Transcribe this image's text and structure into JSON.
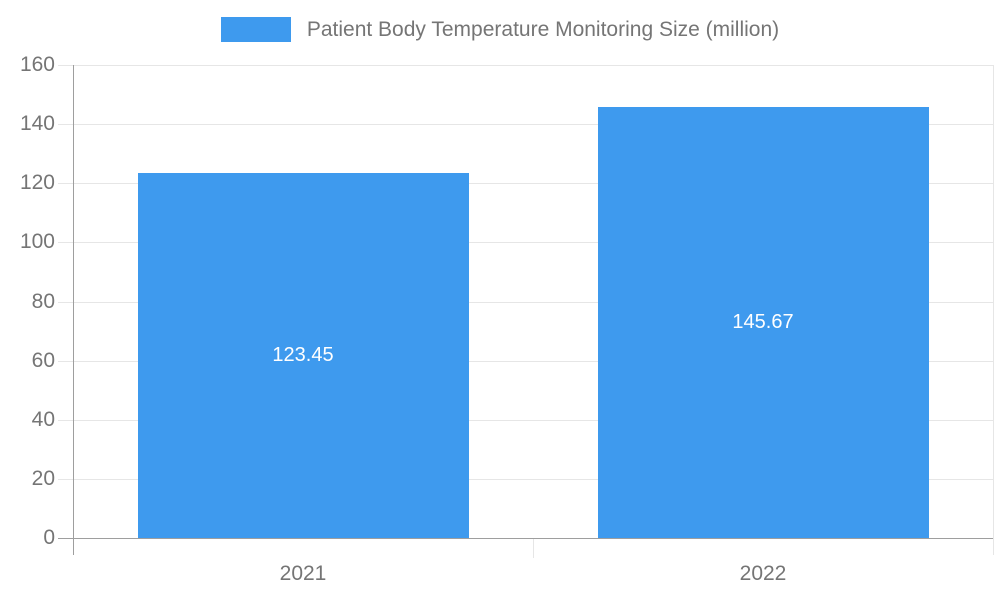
{
  "chart_data": {
    "type": "bar",
    "title": "Patient Body Temperature Monitoring Size (million)",
    "categories": [
      "2021",
      "2022"
    ],
    "values": [
      123.45,
      145.67
    ],
    "value_labels": [
      "123.45",
      "145.67"
    ],
    "ylim": [
      0,
      160
    ],
    "yticks": [
      0,
      20,
      40,
      60,
      80,
      100,
      120,
      140,
      160
    ],
    "legend_position": "top",
    "grid": true,
    "colors": {
      "bar": "#3E9AEE",
      "axis_line": "#9E9E9E",
      "grid_line": "#E6E6E6",
      "tick_text": "#757575",
      "value_label_text": "#FFFFFF",
      "background": "#FFFFFF"
    }
  }
}
